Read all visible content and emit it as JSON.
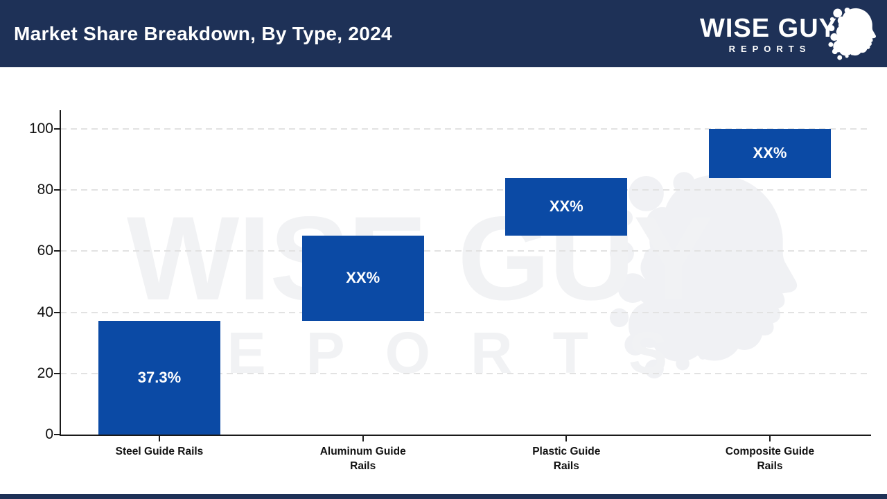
{
  "header": {
    "title": "Market Share Breakdown, By Type, 2024",
    "logo": {
      "line1": "WISE GUY",
      "line2": "REPORTS"
    }
  },
  "watermark": {
    "line1": "WISE GUY",
    "line2": "REPORTS"
  },
  "footer": {},
  "chart_data": {
    "type": "bar",
    "subtype": "waterfall-floating-bars",
    "title": "Market Share Breakdown, By Type, 2024",
    "categories": [
      "Steel Guide Rails",
      "Aluminum Guide Rails",
      "Plastic Guide Rails",
      "Composite Guide Rails"
    ],
    "category_label_lines": [
      [
        "Steel Guide Rails"
      ],
      [
        "Aluminum Guide",
        "Rails"
      ],
      [
        "Plastic Guide",
        "Rails"
      ],
      [
        "Composite Guide",
        "Rails"
      ]
    ],
    "segments": [
      {
        "category": "Steel Guide Rails",
        "start": 0,
        "end": 37.3,
        "label": "37.3%"
      },
      {
        "category": "Aluminum Guide Rails",
        "start": 37.3,
        "end": 65,
        "label": "XX%"
      },
      {
        "category": "Plastic Guide Rails",
        "start": 65,
        "end": 84,
        "label": "XX%"
      },
      {
        "category": "Composite Guide Rails",
        "start": 84,
        "end": 100,
        "label": "XX%"
      }
    ],
    "xlabel": "",
    "ylabel": "",
    "ylim": [
      0,
      105
    ],
    "yticks": [
      0,
      20,
      40,
      60,
      80,
      100
    ],
    "grid": "horizontal-dashed",
    "legend": "none",
    "bar_color": "#0b4aa5",
    "bar_label_color": "#ffffff"
  },
  "colors": {
    "header_bg": "#1e3157",
    "footer_bg": "#1e3157",
    "bar": "#0b4aa5",
    "grid": "#e2e2e2",
    "axis": "#1a1a1a",
    "watermark": "#f1f2f4"
  }
}
